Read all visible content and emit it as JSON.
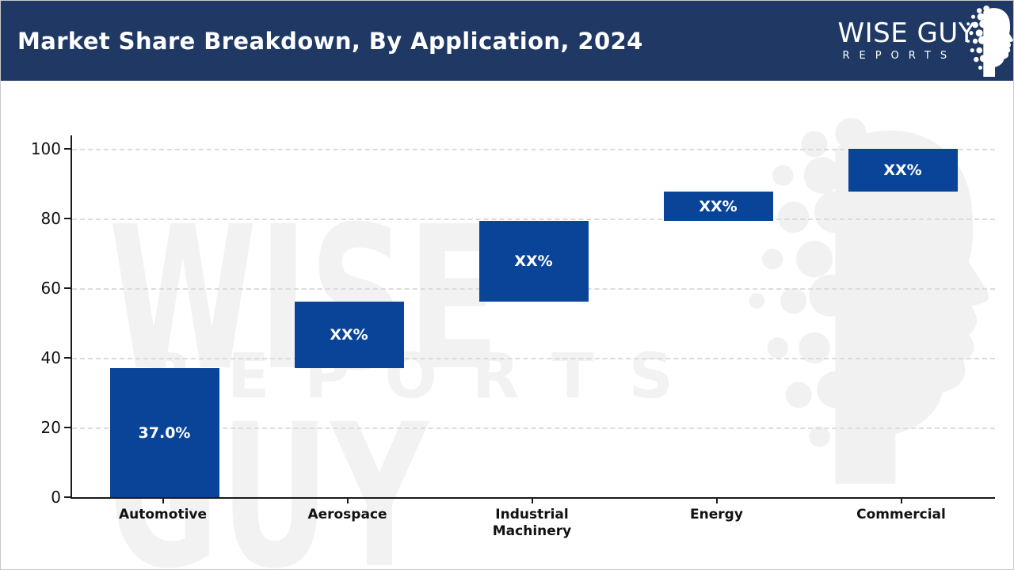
{
  "header": {
    "title": "Market Share Breakdown, By Application, 2024",
    "bg_color": "#1f3864",
    "logo": {
      "line1": "WISE GUY",
      "line2": "REPORTS"
    }
  },
  "watermark": {
    "line1": "WISE GUY",
    "line2": "REPORTS"
  },
  "chart_data": {
    "type": "bar",
    "subtype": "waterfall",
    "title": "Market Share Breakdown, By Application, 2024",
    "categories": [
      "Automotive",
      "Aerospace",
      "Industrial\nMachinery",
      "Energy",
      "Commercial"
    ],
    "segments": [
      {
        "category": "Automotive",
        "start": 0,
        "end": 37.0,
        "label": "37.0%"
      },
      {
        "category": "Aerospace",
        "start": 37.0,
        "end": 56.1,
        "label": "XX%"
      },
      {
        "category": "Industrial Machinery",
        "start": 56.1,
        "end": 79.3,
        "label": "XX%"
      },
      {
        "category": "Energy",
        "start": 79.3,
        "end": 87.7,
        "label": "XX%"
      },
      {
        "category": "Commercial",
        "start": 87.7,
        "end": 100.0,
        "label": "XX%"
      }
    ],
    "y_ticks": [
      0,
      20,
      40,
      60,
      80,
      100
    ],
    "ylim": [
      0,
      100
    ],
    "xlabel": "",
    "ylabel": "",
    "grid": "horizontal-dashed",
    "legend": "none",
    "bar_color": "#0a4499",
    "bar_label_color": "#ffffff",
    "axis_color": "#1a1a1a",
    "grid_color": "#dcdcdc"
  }
}
